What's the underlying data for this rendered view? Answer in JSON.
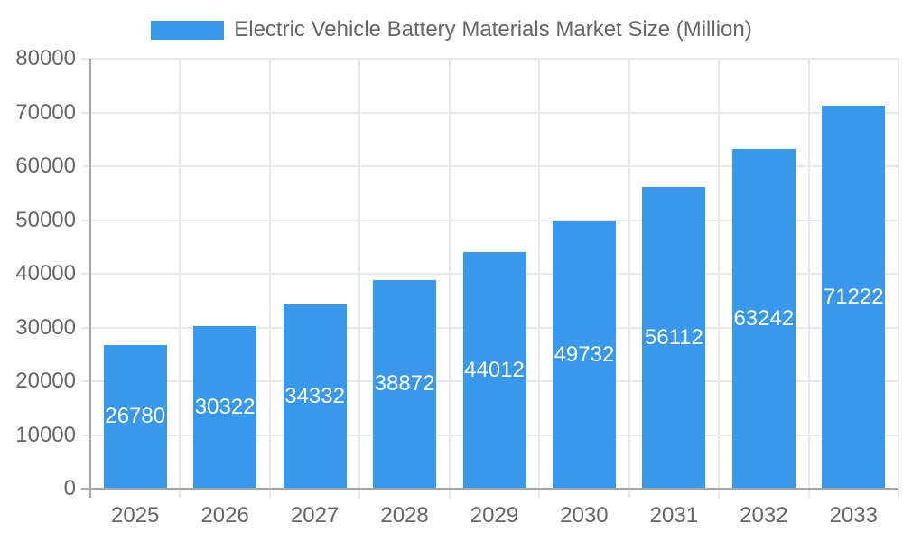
{
  "legend": {
    "position": "top"
  },
  "chart_data": {
    "type": "bar",
    "series_name": "Electric Vehicle Battery Materials Market Size (Million)",
    "categories": [
      "2025",
      "2026",
      "2027",
      "2028",
      "2029",
      "2030",
      "2031",
      "2032",
      "2033"
    ],
    "values": [
      26780,
      30322,
      34332,
      38872,
      44012,
      49732,
      56112,
      63242,
      71222
    ],
    "xlabel": "",
    "ylabel": "",
    "ylim": [
      0,
      80000
    ],
    "yticks": [
      0,
      10000,
      20000,
      30000,
      40000,
      50000,
      60000,
      70000,
      80000
    ],
    "grid": true,
    "legend_position": "top",
    "value_labels": "inside-center",
    "colors": {
      "bar": "#3899EC",
      "value_label": "#FFFFFF",
      "axis_text": "#666666",
      "gridline": "#E8E8E8",
      "axis_line": "#A6A6A6",
      "background": "#FFFFFF"
    }
  }
}
